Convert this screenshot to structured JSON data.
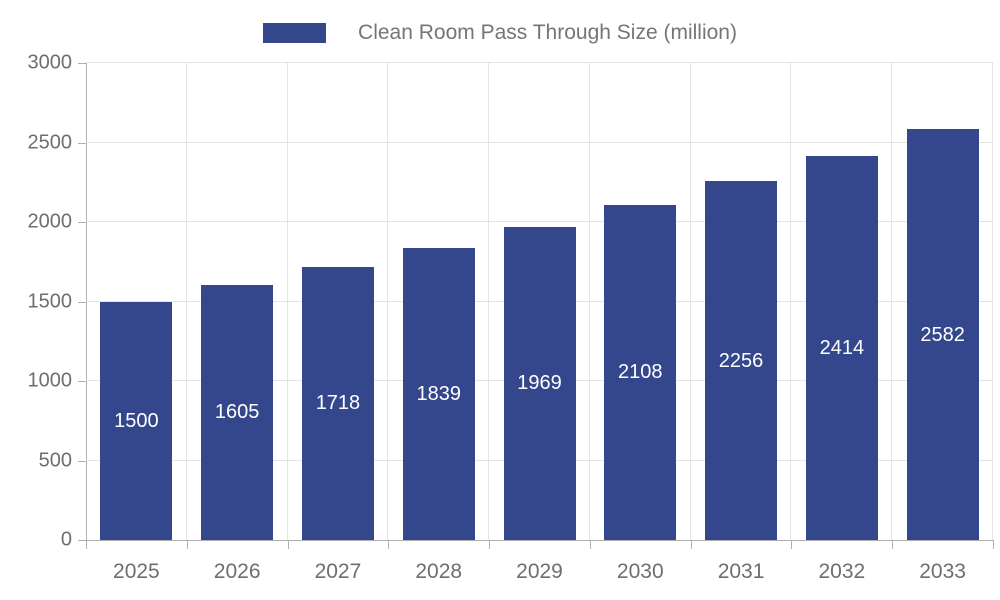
{
  "chart_data": {
    "type": "bar",
    "title": "Clean Room Pass Through Size (million)",
    "legend": {
      "label": "Clean Room Pass Through Size (million)",
      "position": "top"
    },
    "categories": [
      "2025",
      "2026",
      "2027",
      "2028",
      "2029",
      "2030",
      "2031",
      "2032",
      "2033"
    ],
    "series": [
      {
        "name": "Clean Room Pass Through Size (million)",
        "values": [
          1500,
          1605,
          1718,
          1839,
          1969,
          2108,
          2256,
          2414,
          2582
        ]
      }
    ],
    "value_labels_shown": true,
    "xlabel": "",
    "ylabel": "",
    "ylim": [
      0,
      3000
    ],
    "yticks": [
      0,
      500,
      1000,
      1500,
      2000,
      2500,
      3000
    ],
    "grid": true,
    "colors": {
      "bar": "#35478C",
      "bar_value_label": "#ffffff",
      "axis_text": "#6e6e6e",
      "legend_text": "#757575",
      "gridline": "#e4e4e4",
      "axis_line": "#b0b0b0",
      "background": "#ffffff"
    }
  }
}
